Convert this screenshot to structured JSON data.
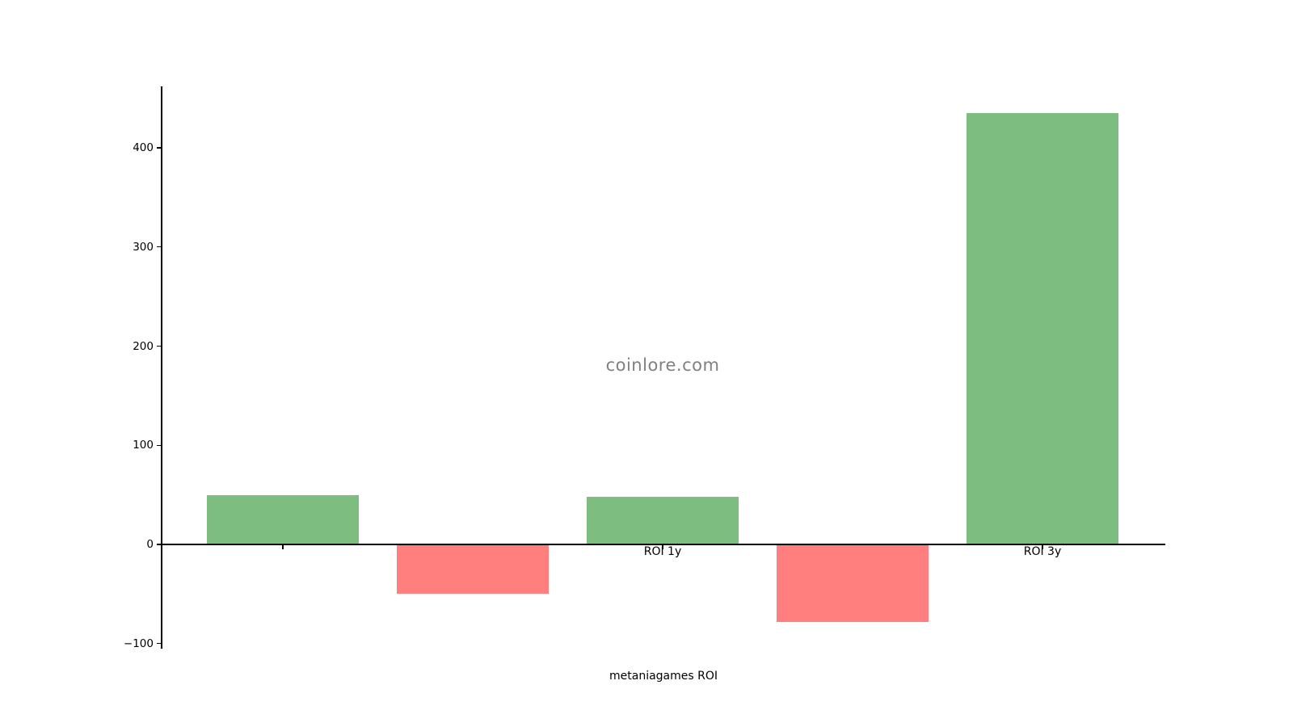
{
  "chart_data": {
    "type": "bar",
    "title": "",
    "xlabel": "metaniagames ROI",
    "ylabel": "",
    "categories": [
      "",
      "",
      "ROI 1y",
      "",
      "ROI 3y"
    ],
    "values": [
      50,
      -50,
      48,
      -78,
      435
    ],
    "y_ticks": [
      400,
      300,
      200,
      100,
      0,
      -100
    ],
    "y_tick_labels": [
      "400",
      "300",
      "200",
      "100",
      "0",
      "−100"
    ],
    "ylim": [
      -104,
      461
    ],
    "grid": false,
    "legend": null,
    "positive_color": "#7dbe80",
    "negative_color": "#ff7f7f",
    "axis_color": "#000000",
    "watermark": "coinlore.com",
    "watermark_color": "#808080"
  }
}
